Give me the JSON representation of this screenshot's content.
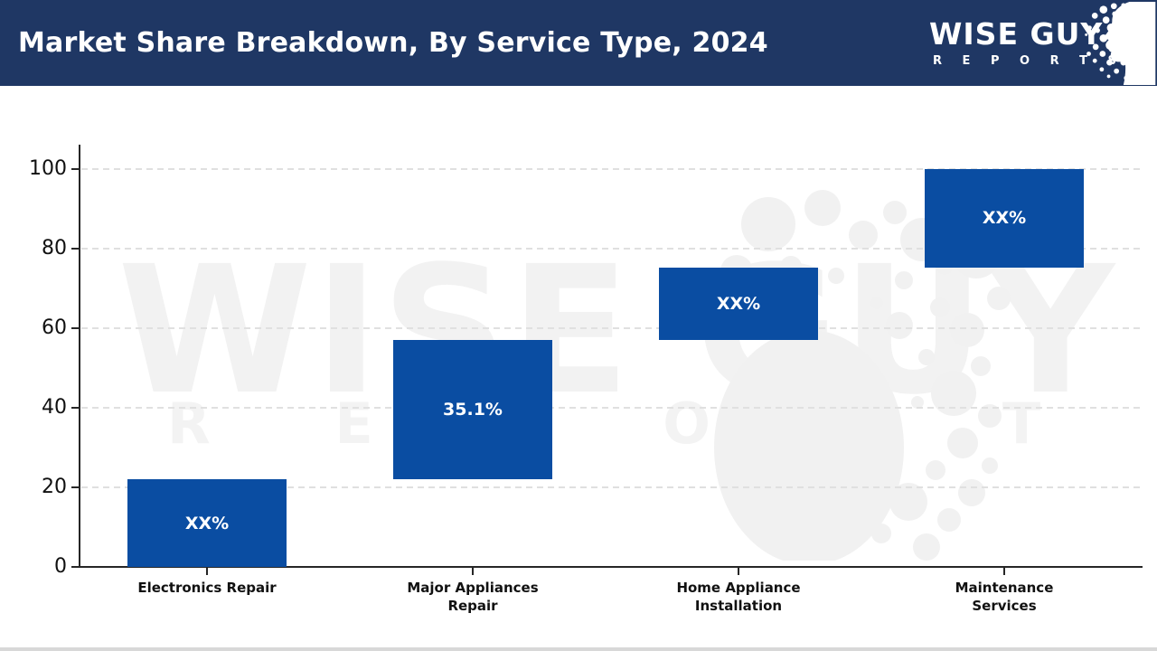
{
  "header": {
    "title": "Market Share Breakdown, By Service Type, 2024",
    "bg_color": "#1f3764",
    "logo": {
      "wordmark": "WISE GUY",
      "subtext": "R E P O R T S"
    }
  },
  "watermark": {
    "wordmark": "WISE GUY",
    "subtext": "R E P O R T S"
  },
  "chart_data": {
    "type": "bar",
    "subtype": "floating-waterfall",
    "title": "Market Share Breakdown, By Service Type, 2024",
    "categories": [
      "Electronics Repair",
      "Major Appliances Repair",
      "Home Appliance Installation",
      "Maintenance Services"
    ],
    "category_label_lines": [
      [
        "Electronics Repair"
      ],
      [
        "Major Appliances",
        "Repair"
      ],
      [
        "Home Appliance",
        "Installation"
      ],
      [
        "Maintenance",
        "Services"
      ]
    ],
    "segments": [
      {
        "category": "Electronics Repair",
        "start": 0,
        "end": 22,
        "height": 22,
        "label": "XX%"
      },
      {
        "category": "Major Appliances Repair",
        "start": 22,
        "end": 57.1,
        "height": 35.1,
        "label": "35.1%"
      },
      {
        "category": "Home Appliance Installation",
        "start": 57.1,
        "end": 75.3,
        "height": 18.2,
        "label": "XX%"
      },
      {
        "category": "Maintenance Services",
        "start": 75.3,
        "end": 100,
        "height": 24.7,
        "label": "XX%"
      }
    ],
    "bar_color": "#0a4da2",
    "bar_label_color": "#ffffff",
    "xlabel": "",
    "ylabel": "",
    "ylim": [
      0,
      100
    ],
    "yticks": [
      0,
      20,
      40,
      60,
      80,
      100
    ],
    "grid": "horizontal-dashed",
    "legend": null
  }
}
